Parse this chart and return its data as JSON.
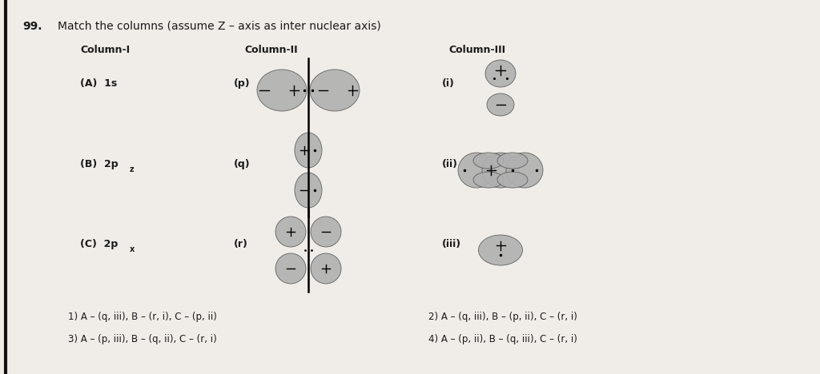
{
  "title_num": "99.",
  "title_text": "Match the columns (assume Z – axis as inter nuclear axis)",
  "col1_header": "Column-I",
  "col2_header": "Column-II",
  "col3_header": "Column-III",
  "answers": [
    "1) A – (q, iii), B – (r, i), C – (p, ii)",
    "2) A – (q, iii), B – (p, ii), C – (r, i)",
    "3) A – (p, iii), B – (q, ii), C – (r, i)",
    "4) A – (p, ii), B – (q, iii), C – (r, i)"
  ],
  "orbital_color": "#b0b0b0",
  "orbital_edge": "#555555",
  "bg_color": "#f0ede8",
  "text_color": "#1a1a1a",
  "line_color": "#111111"
}
